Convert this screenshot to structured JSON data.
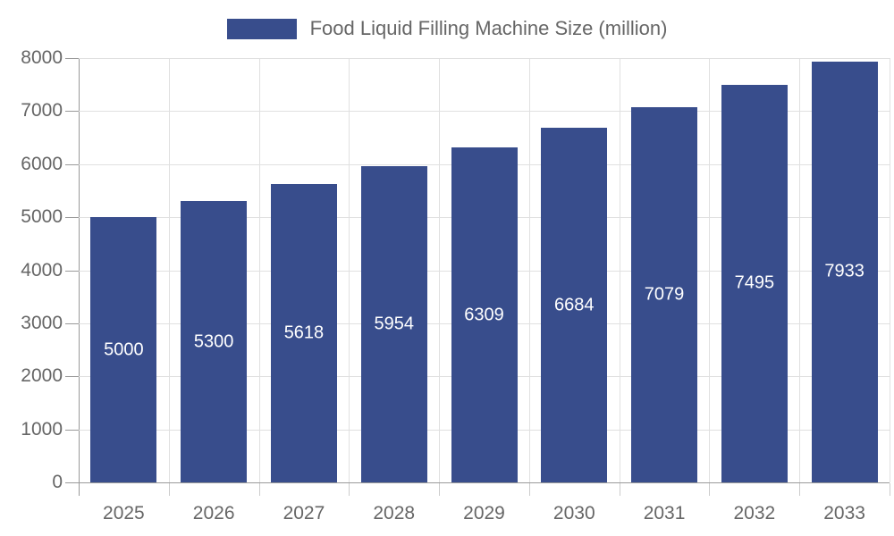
{
  "legend": {
    "label": "Food Liquid Filling Machine Size (million)"
  },
  "chart_data": {
    "type": "bar",
    "title": "Food Liquid Filling Machine Size (million)",
    "series": [
      {
        "name": "Food Liquid Filling Machine Size (million)",
        "values": [
          5000,
          5300,
          5618,
          5954,
          6309,
          6684,
          7079,
          7495,
          7933
        ]
      }
    ],
    "categories": [
      "2025",
      "2026",
      "2027",
      "2028",
      "2029",
      "2030",
      "2031",
      "2032",
      "2033"
    ],
    "value_labels": [
      "5000",
      "5300",
      "5618",
      "5954",
      "6309",
      "6684",
      "7079",
      "7495",
      "7933"
    ],
    "xlabel": "",
    "ylabel": "",
    "ylim": [
      0,
      8000
    ],
    "yticks": [
      0,
      1000,
      2000,
      3000,
      4000,
      5000,
      6000,
      7000,
      8000
    ],
    "grid": true,
    "legend_position": "top-center",
    "colors": {
      "bar": "#384D8C",
      "grid": "#e0e0e0",
      "axis": "#999999",
      "tick_text": "#666666",
      "legend_text": "#666666",
      "value_label_text": "#ffffff"
    }
  }
}
